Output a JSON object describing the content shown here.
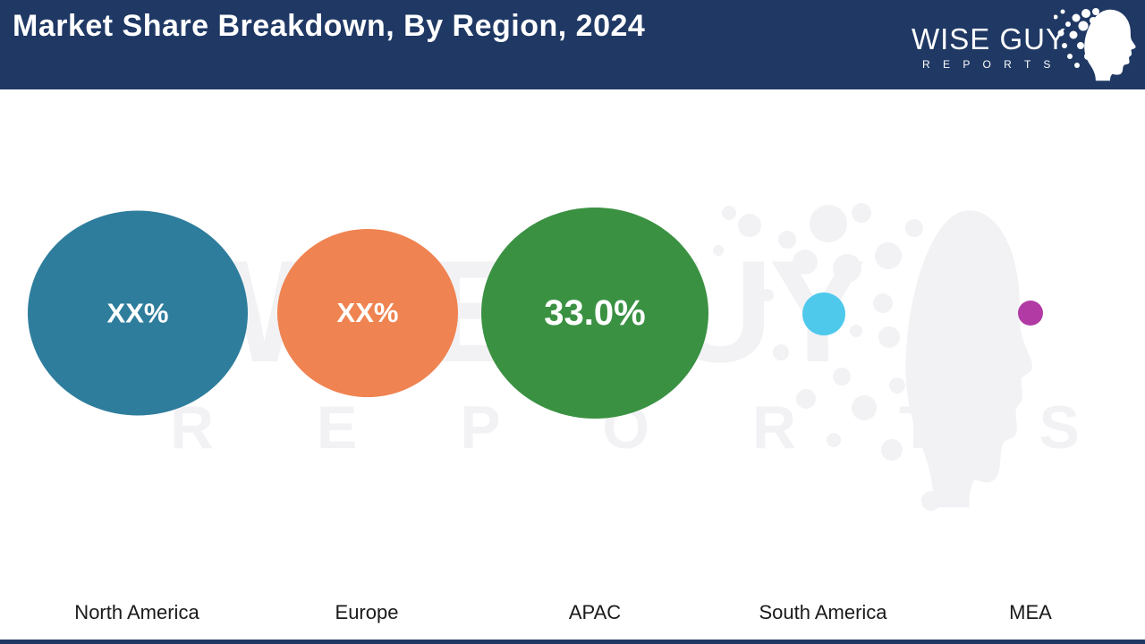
{
  "header": {
    "title": "Market Share Breakdown, By Region, 2024",
    "logo_line1": "WISE GUY",
    "logo_line2": "R E P O R T S"
  },
  "watermark": {
    "line1": "WISE GUY",
    "line2": "R E P O R T S"
  },
  "chart_data": {
    "type": "bubble",
    "title": "Market Share Breakdown, By Region, 2024",
    "categories": [
      "North America",
      "Europe",
      "APAC",
      "South America",
      "MEA"
    ],
    "value_labels": [
      "XX%",
      "XX%",
      "33.0%",
      "",
      ""
    ],
    "values_percent": [
      null,
      null,
      33.0,
      null,
      null
    ],
    "bubble_radius_px": [
      123,
      101,
      127,
      24,
      14
    ],
    "colors": [
      "#2e7d9c",
      "#ef8351",
      "#3a9142",
      "#4ec9ec",
      "#b13aa5"
    ],
    "legend_position": "bottom",
    "grid": false,
    "xlabel": "",
    "ylabel": ""
  },
  "colors": {
    "header_bg": "#1f3864",
    "footer_bar": "#1f3864",
    "background": "#ffffff",
    "watermark": "#f2f2f5",
    "category_text": "#1a1a1a",
    "bubble_text": "#ffffff"
  }
}
